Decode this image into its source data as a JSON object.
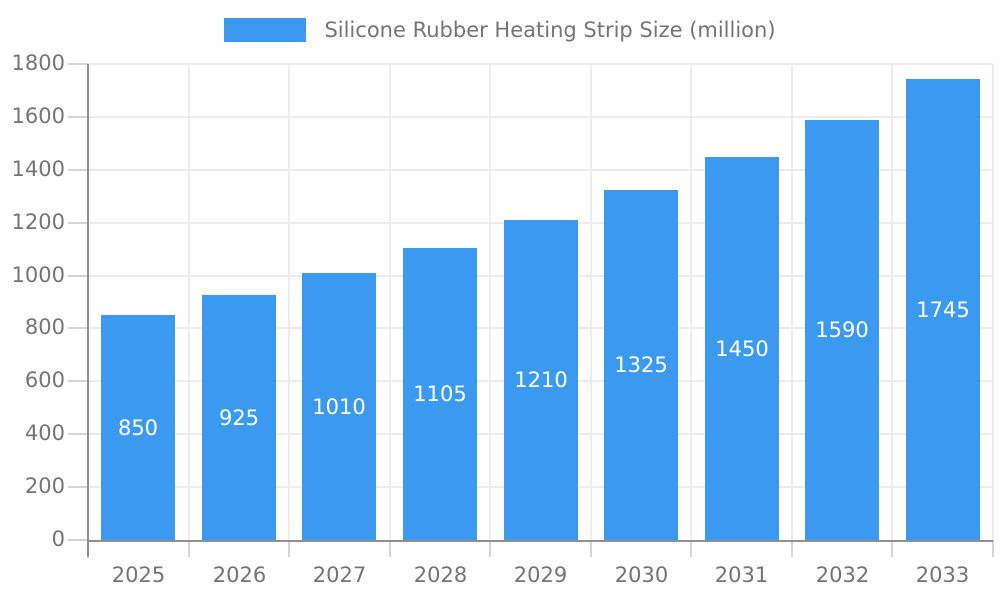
{
  "chart_data": {
    "type": "bar",
    "title": "Silicone Rubber Heating Strip Size (million)",
    "categories": [
      "2025",
      "2026",
      "2027",
      "2028",
      "2029",
      "2030",
      "2031",
      "2032",
      "2033"
    ],
    "values": [
      850,
      925,
      1010,
      1105,
      1210,
      1325,
      1450,
      1590,
      1745
    ],
    "value_labels": [
      "850",
      "925",
      "1010",
      "1105",
      "1210",
      "1325",
      "1450",
      "1590",
      "1745"
    ],
    "xlabel": "",
    "ylabel": "",
    "ylim": [
      0,
      1800
    ],
    "ytick_step": 200,
    "ytick_labels": [
      "0",
      "200",
      "400",
      "600",
      "800",
      "1000",
      "1200",
      "1400",
      "1600",
      "1800"
    ],
    "grid": true,
    "legend_position": "top",
    "value_label_position": "inside-center"
  },
  "colors": {
    "bar": "#3B99EF",
    "text": "#757575",
    "value_label": "#FFFFFF",
    "gridline": "#ECECEC",
    "tick": "#D4D4D4",
    "axis": "#909090",
    "background": "#FFFFFF"
  }
}
